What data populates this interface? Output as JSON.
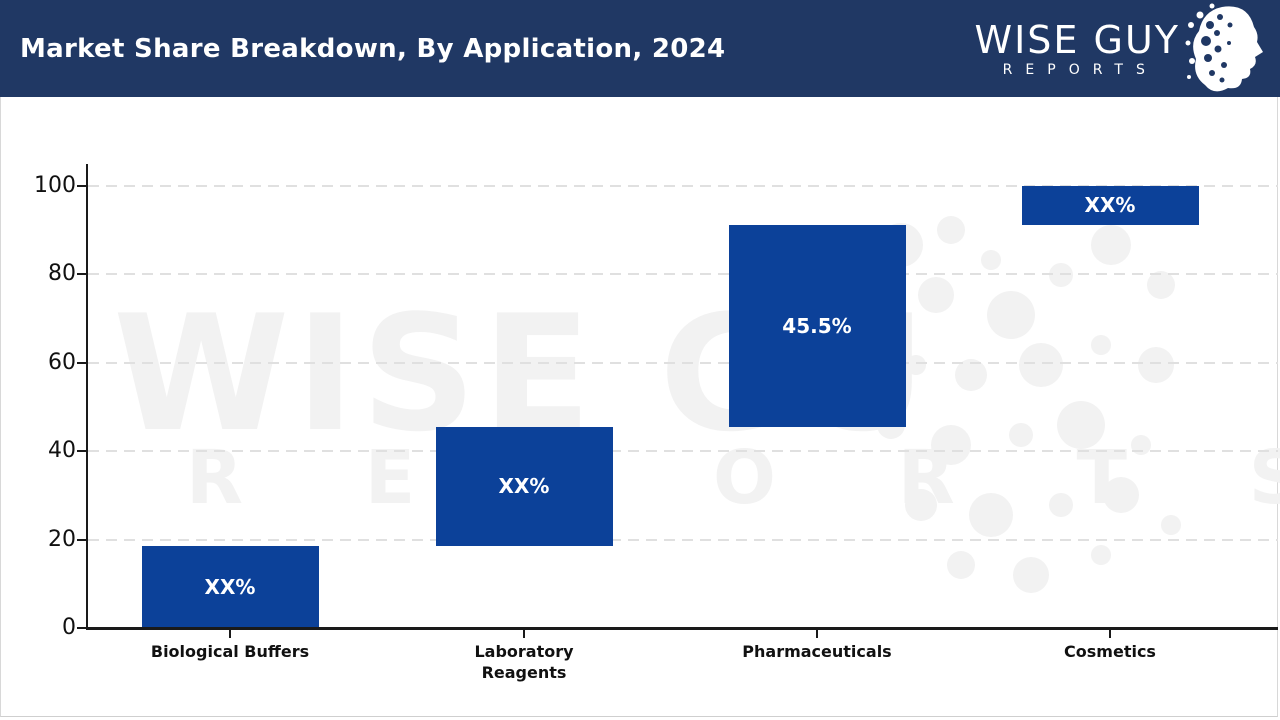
{
  "header": {
    "title": "Market Share Breakdown, By Application, 2024",
    "logo": {
      "line1": "WISE GUY",
      "line2": "REPORTS"
    }
  },
  "watermark": {
    "line1": "WISE GU",
    "line2": "R E P O R T S"
  },
  "colors": {
    "header_bg": "#203864",
    "bar_blue": "#0c4199",
    "grid_gray": "#e0e0e0",
    "axis_black": "#1a1a1a",
    "watermark_gray": "#f2f2f2",
    "bar_label_white": "#ffffff"
  },
  "chart_data": {
    "type": "bar",
    "subtype": "floating-waterfall",
    "title": "Market Share Breakdown, By Application, 2024",
    "categories": [
      "Biological Buffers",
      "Laboratory Reagents",
      "Pharmaceuticals",
      "Cosmetics"
    ],
    "category_lines": [
      [
        "Biological Buffers"
      ],
      [
        "Laboratory",
        "Reagents"
      ],
      [
        "Pharmaceuticals"
      ],
      [
        "Cosmetics"
      ]
    ],
    "segments": [
      {
        "category": "Biological Buffers",
        "start": 0,
        "end": 18.5,
        "label": "XX%"
      },
      {
        "category": "Laboratory Reagents",
        "start": 18.5,
        "end": 45.5,
        "label": "XX%"
      },
      {
        "category": "Pharmaceuticals",
        "start": 45.5,
        "end": 91,
        "label": "45.5%"
      },
      {
        "category": "Cosmetics",
        "start": 91,
        "end": 100,
        "label": "XX%"
      }
    ],
    "ylim": [
      0,
      100
    ],
    "yticks": [
      0,
      20,
      40,
      60,
      80,
      100
    ],
    "xlabel": "",
    "ylabel": "",
    "grid": "horizontal-dashed",
    "legend": null
  }
}
